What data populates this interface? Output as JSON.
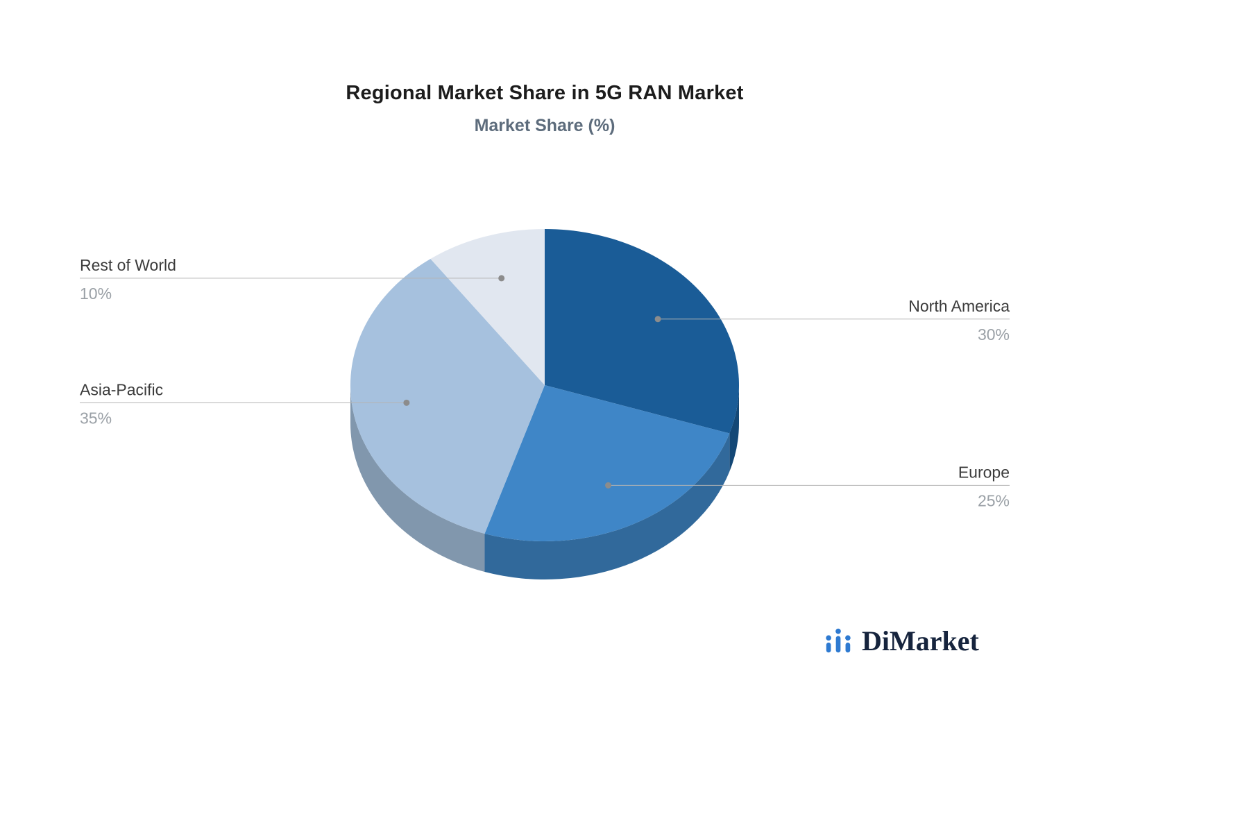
{
  "chart_data": {
    "type": "pie",
    "style": "3d-pie",
    "title": "Regional Market Share in 5G RAN Market",
    "subtitle": "Market Share (%)",
    "categories": [
      "North America",
      "Europe",
      "Asia-Pacific",
      "Rest of World"
    ],
    "values": [
      30,
      25,
      35,
      10
    ],
    "unit": "%",
    "colors": [
      "#1a5c97",
      "#3f86c7",
      "#a6c1de",
      "#e1e7f0"
    ],
    "label_sides": [
      "right",
      "right",
      "left",
      "left"
    ],
    "start_angle_deg": 0,
    "direction": "clockwise",
    "legend": "none",
    "background": "#ffffff",
    "label_text_color": "#3b3b3b",
    "label_value_color": "#9aa0a6",
    "leader_line_color": "#b3b3b3",
    "leader_dot_color": "#8c8c8c"
  },
  "logo": {
    "text": "DiMarket",
    "icon": "bar-chart-icon",
    "icon_color": "#2e7ad1",
    "text_color": "#16243d"
  }
}
